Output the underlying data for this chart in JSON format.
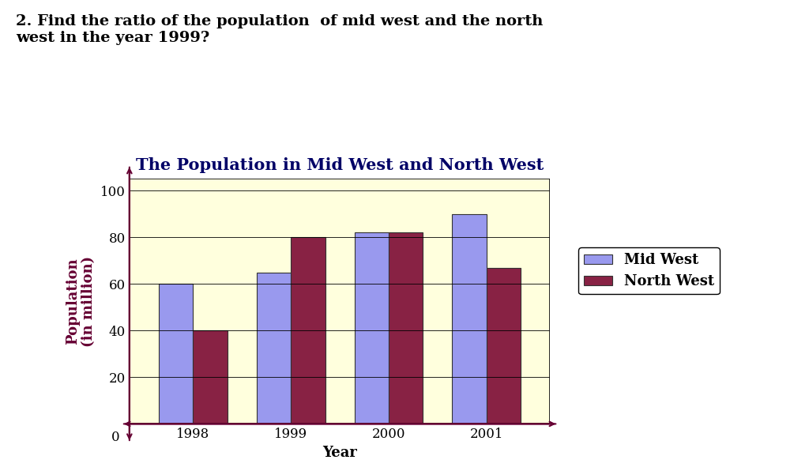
{
  "title": "The Population in Mid West and North West",
  "question_text": "2. Find the ratio of the population  of mid west and the north\nwest in the year 1999?",
  "xlabel": "Year",
  "ylabel": "Population\n(in million)",
  "years": [
    1998,
    1999,
    2000,
    2001
  ],
  "mid_west": [
    60,
    65,
    82,
    90
  ],
  "north_west": [
    40,
    80,
    82,
    67
  ],
  "mid_west_color": "#9999ee",
  "north_west_color": "#882244",
  "background_color": "#ffffdd",
  "ylim": [
    0,
    105
  ],
  "yticks": [
    20,
    40,
    60,
    80,
    100
  ],
  "bar_width": 0.35,
  "legend_labels": [
    "Mid West",
    "North West"
  ],
  "title_fontsize": 15,
  "title_color": "#000066",
  "axis_label_fontsize": 13,
  "tick_fontsize": 12,
  "question_fontsize": 14,
  "arrow_color": "#660033"
}
